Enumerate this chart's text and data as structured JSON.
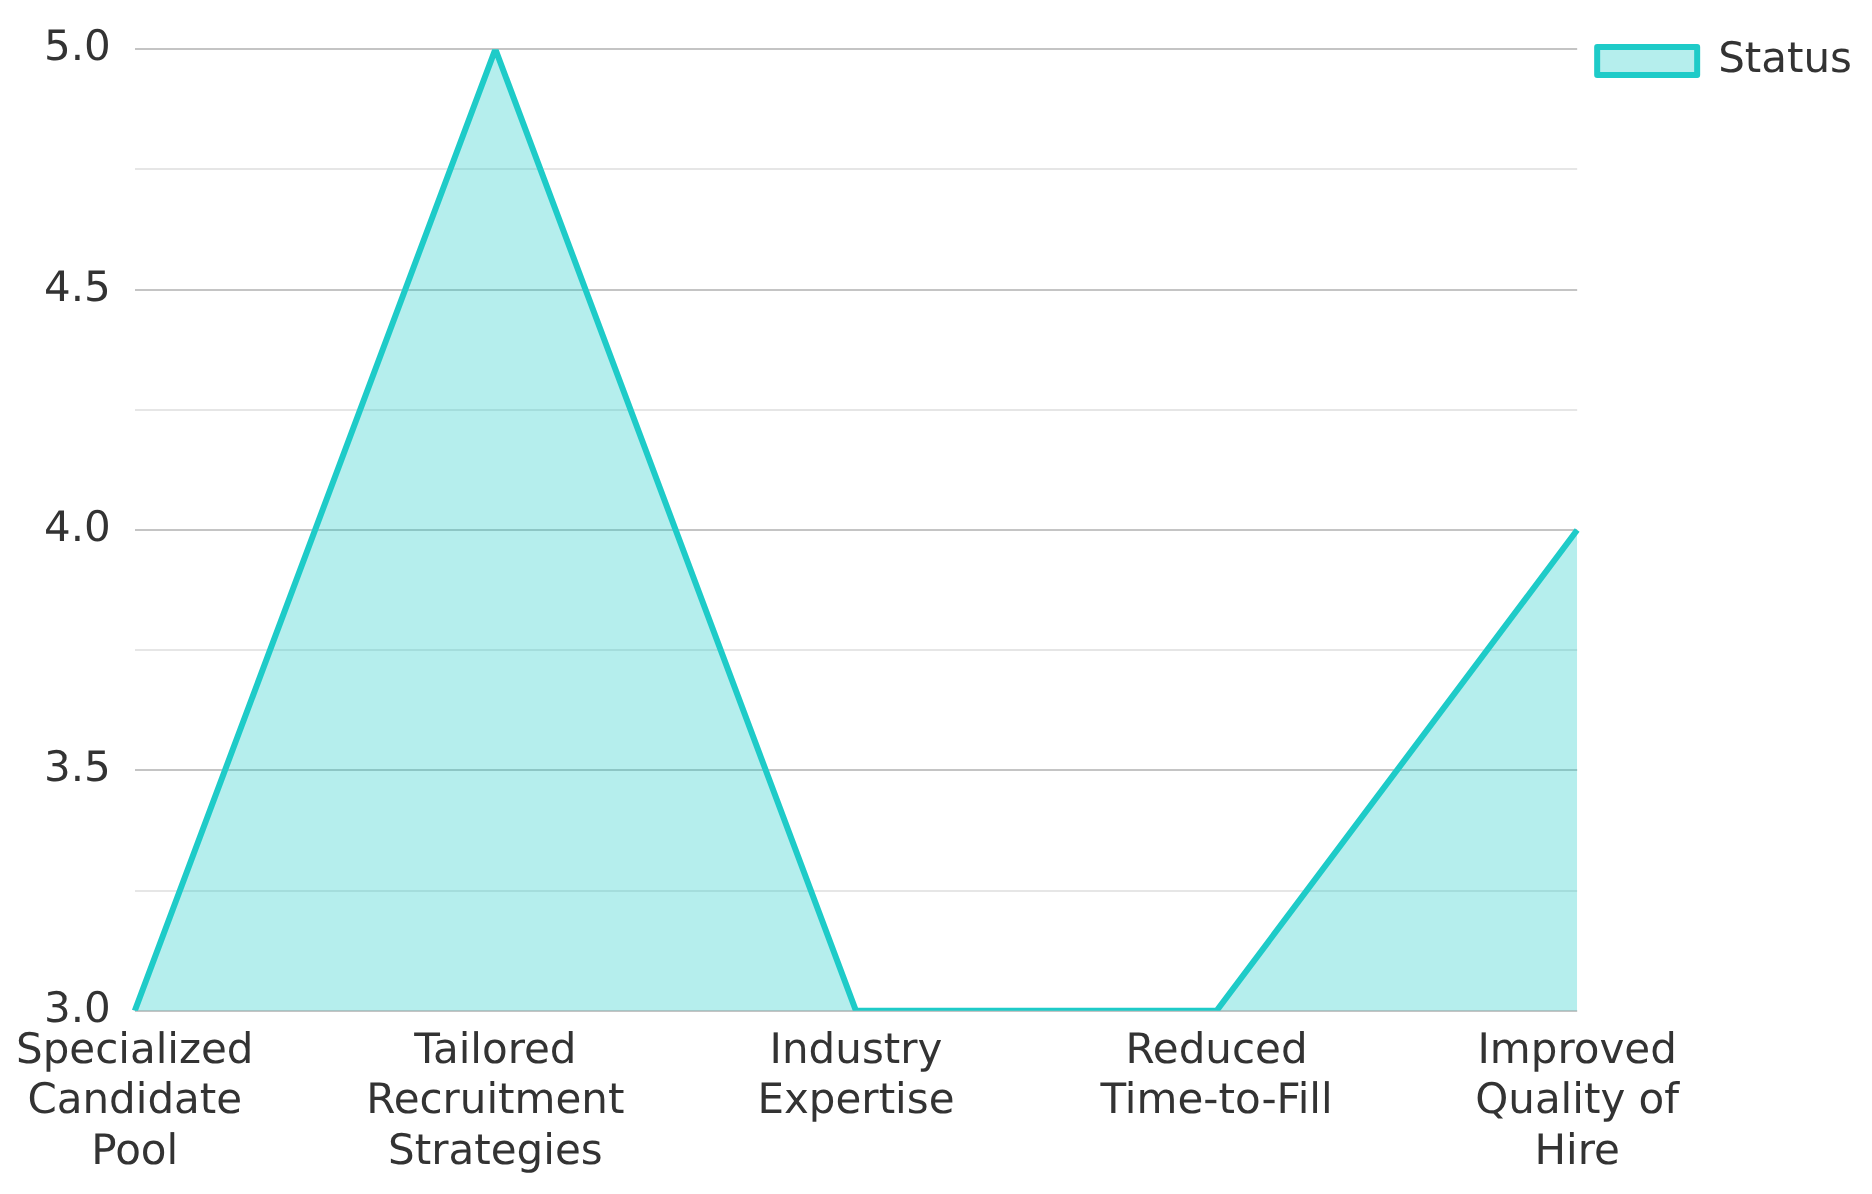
{
  "chart_data": {
    "type": "area",
    "categories": [
      "Specialized Candidate Pool",
      "Tailored Recruitment Strategies",
      "Industry Expertise",
      "Reduced Time-to-Fill",
      "Improved Quality of Hire"
    ],
    "series": [
      {
        "name": "Status",
        "color": "#1ecbc8",
        "values": [
          3,
          5,
          3,
          3,
          4
        ]
      }
    ],
    "ylim": [
      3,
      5
    ],
    "yticks": [
      {
        "value": 3,
        "label": "3.0"
      },
      {
        "value": 3.25,
        "label": null
      },
      {
        "value": 3.5,
        "label": "3.5"
      },
      {
        "value": 3.75,
        "label": null
      },
      {
        "value": 4,
        "label": "4.0"
      },
      {
        "value": 4.25,
        "label": null
      },
      {
        "value": 4.5,
        "label": "4.5"
      },
      {
        "value": 4.75,
        "label": null
      },
      {
        "value": 5,
        "label": "5.0"
      }
    ],
    "grid": "y",
    "legend": "top right",
    "marker": "none",
    "line_style": "solid"
  }
}
